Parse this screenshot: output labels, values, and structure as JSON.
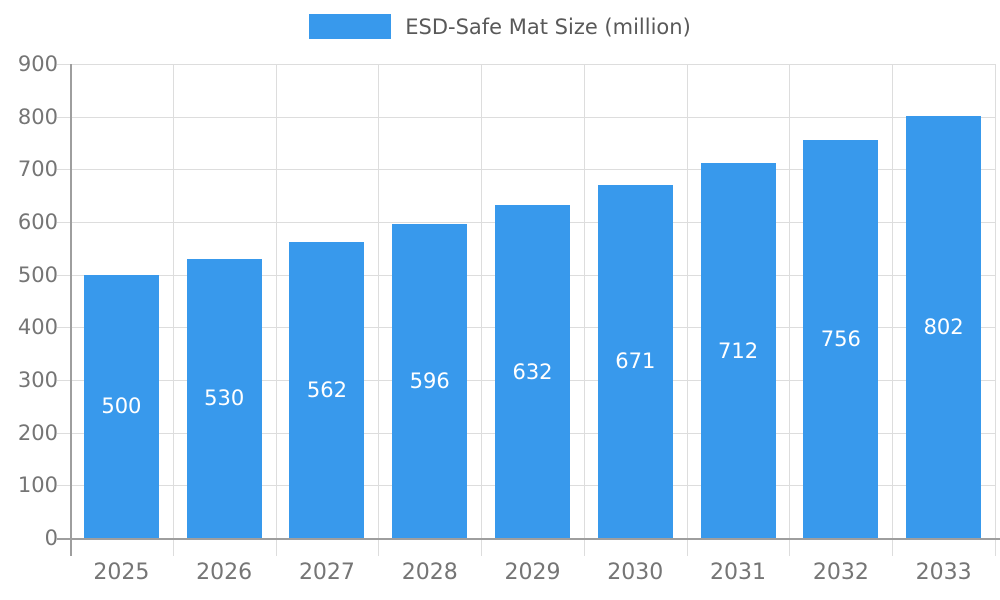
{
  "legend": {
    "label": "ESD-Safe Mat Size (million)"
  },
  "chart_data": {
    "type": "bar",
    "title": "ESD-Safe Mat Size (million)",
    "series": [
      {
        "name": "ESD-Safe Mat Size (million)",
        "values": [
          500,
          530,
          562,
          596,
          632,
          671,
          712,
          756,
          802
        ]
      }
    ],
    "categories": [
      "2025",
      "2026",
      "2027",
      "2028",
      "2029",
      "2030",
      "2031",
      "2032",
      "2033"
    ],
    "value_labels": [
      "500",
      "530",
      "562",
      "596",
      "632",
      "671",
      "712",
      "756",
      "802"
    ],
    "xlabel": "",
    "ylabel": "",
    "ylim": [
      0,
      900
    ],
    "yticks": [
      0,
      100,
      200,
      300,
      400,
      500,
      600,
      700,
      800,
      900
    ],
    "grid": true,
    "legend_position": "top-center",
    "colors": {
      "bar": "#3899EC",
      "value_label": "#FFFFFF",
      "tick_label": "#757575",
      "legend_text": "#595959",
      "gridline": "#DDDDDD",
      "axis_line": "#9E9E9E",
      "background": "#FFFFFF"
    }
  }
}
